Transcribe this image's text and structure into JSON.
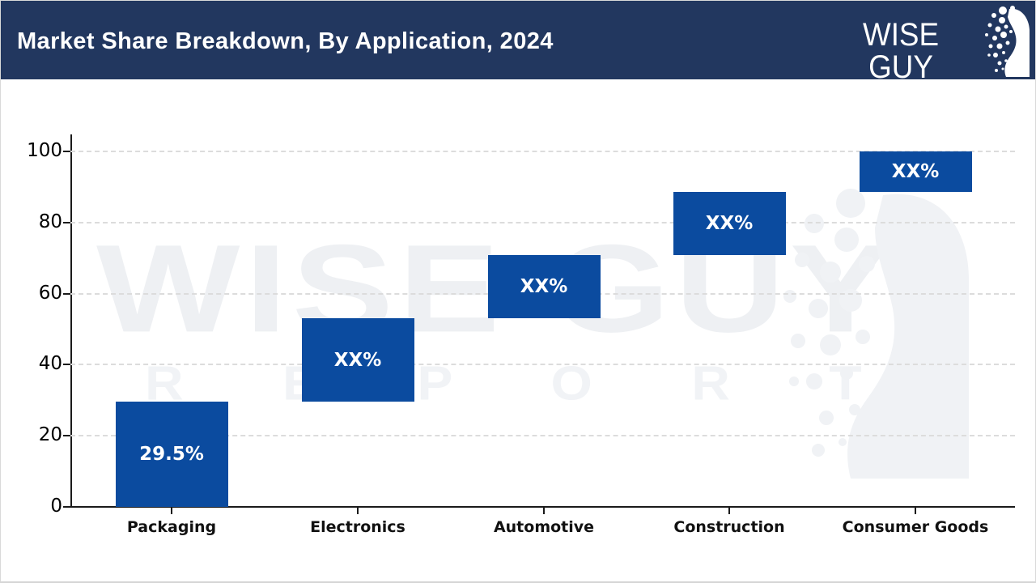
{
  "header": {
    "title": "Market Share Breakdown, By Application, 2024",
    "logo": {
      "line1": "WISE GUY",
      "line2": "REPORTS"
    }
  },
  "watermark": {
    "line1": "WISE GUY",
    "line2": "REPORTS"
  },
  "colors": {
    "header_bg": "#22375f",
    "bar_fill": "#0b4b9f",
    "bar_label": "#ffffff",
    "axis": "#1a1a1a",
    "gridline": "#dcdcdc",
    "watermark": "#eef0f3"
  },
  "chart_data": {
    "type": "bar",
    "subtype": "waterfall",
    "title": "Market Share Breakdown, By Application, 2024",
    "categories": [
      "Packaging",
      "Electronics",
      "Automotive",
      "Construction",
      "Consumer Goods"
    ],
    "segments": [
      {
        "category": "Packaging",
        "start": 0,
        "end": 29.5,
        "value": 29.5,
        "label": "29.5%"
      },
      {
        "category": "Electronics",
        "start": 29.5,
        "end": 53.0,
        "value": 23.5,
        "label": "XX%"
      },
      {
        "category": "Automotive",
        "start": 53.0,
        "end": 70.8,
        "value": 17.8,
        "label": "XX%"
      },
      {
        "category": "Construction",
        "start": 70.8,
        "end": 88.5,
        "value": 17.7,
        "label": "XX%"
      },
      {
        "category": "Consumer Goods",
        "start": 88.5,
        "end": 100,
        "value": 11.5,
        "label": "XX%"
      }
    ],
    "y_axis": {
      "ticks": [
        0,
        20,
        40,
        60,
        80,
        100
      ],
      "range": [
        0,
        105
      ]
    },
    "xlabel": "",
    "ylabel": "",
    "grid": "horizontal-dashed",
    "legend": "none"
  }
}
